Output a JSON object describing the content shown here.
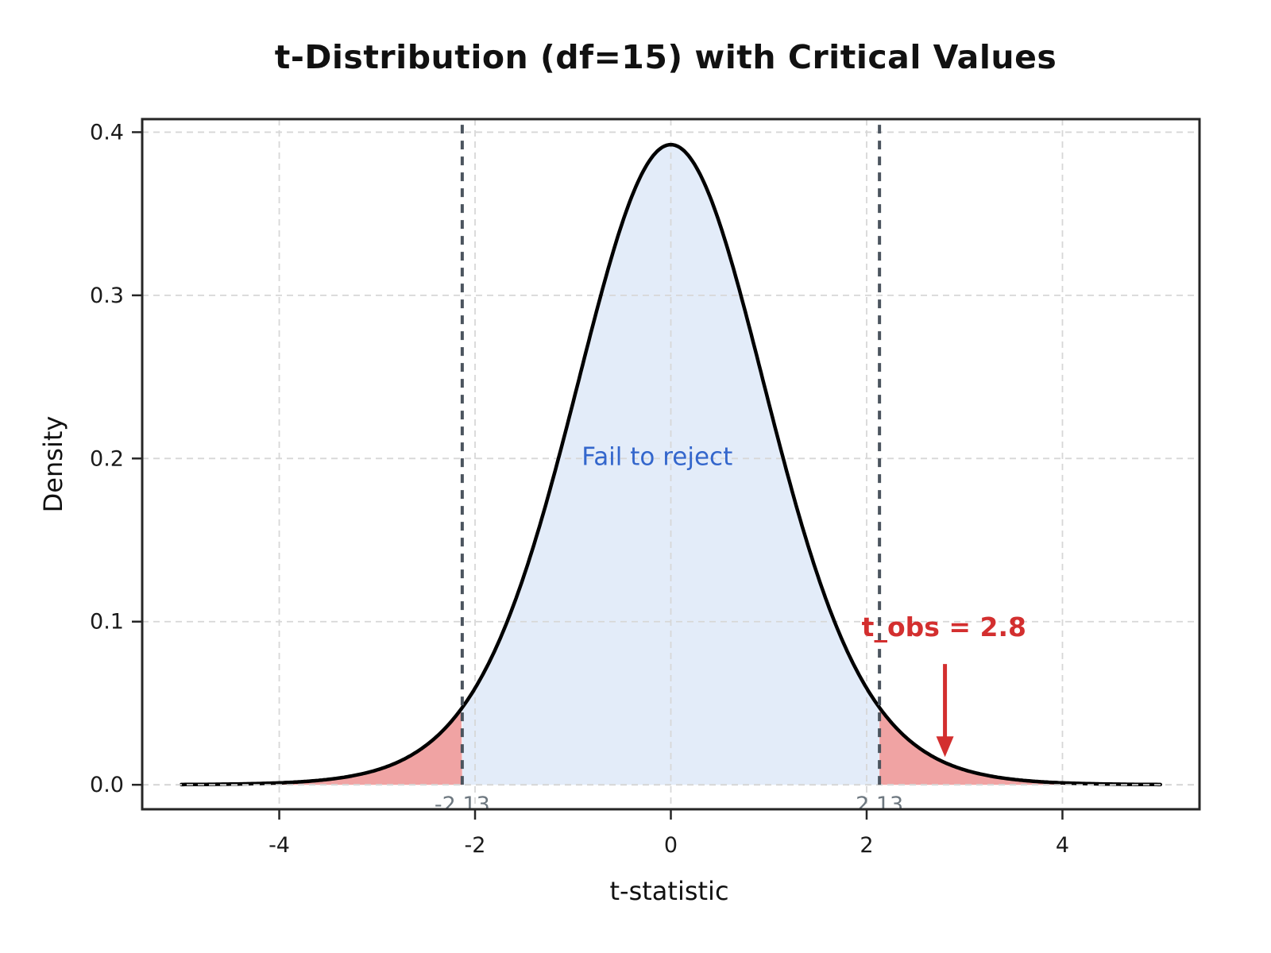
{
  "title": "t-Distribution (df=15) with Critical Values",
  "chart_data": {
    "type": "area",
    "title": "t-Distribution (df=15) with Critical Values",
    "xlabel": "t-statistic",
    "ylabel": "Density",
    "df": 15,
    "peak_density": 0.392,
    "curve_color": "#000000",
    "curve_x_range": [
      -5,
      5
    ],
    "xlim": [
      -5.4,
      5.4
    ],
    "ylim": [
      -0.015,
      0.408
    ],
    "grid": true,
    "legend": "none",
    "xticks": {
      "values": [
        -4,
        -2,
        0,
        2,
        4
      ],
      "labels": [
        "-4",
        "-2",
        "0",
        "2",
        "4"
      ]
    },
    "yticks": {
      "values": [
        0,
        0.1,
        0.2,
        0.3,
        0.4
      ],
      "labels": [
        "0.0",
        "0.1",
        "0.2",
        "0.3",
        "0.4"
      ]
    },
    "critical_value": 2.131,
    "critical_lines": {
      "x": [
        -2.131,
        2.131
      ],
      "color": "#4b545e",
      "left_label": "-2.13",
      "right_label": "2.13",
      "label_color": "#6e7880"
    },
    "regions": {
      "fail_to_reject": {
        "from": -2.131,
        "to": 2.131,
        "fill": "#e3ecf9"
      },
      "reject_left": {
        "from": -5,
        "to": -2.131,
        "fill": "#f0a3a3"
      },
      "reject_right": {
        "from": 2.131,
        "to": 5,
        "fill": "#f0a3a3"
      }
    },
    "annotations": {
      "fail_to_reject": {
        "text": "Fail to reject",
        "x": -0.14,
        "y": 0.196,
        "color": "#3366cc"
      },
      "t_obs_label": {
        "text": "t_obs = 2.8",
        "x": 2.79,
        "y": 0.091,
        "color": "#d32f2f"
      },
      "t_obs": 2.8,
      "arrow": {
        "x": 2.8,
        "y_from": 0.074,
        "y_to": 0.017,
        "color": "#d32f2f"
      }
    },
    "style": {
      "grid_color": "#d7d7d7",
      "spine_color": "#262626",
      "tick_text_color": "#1a1a1a"
    }
  }
}
